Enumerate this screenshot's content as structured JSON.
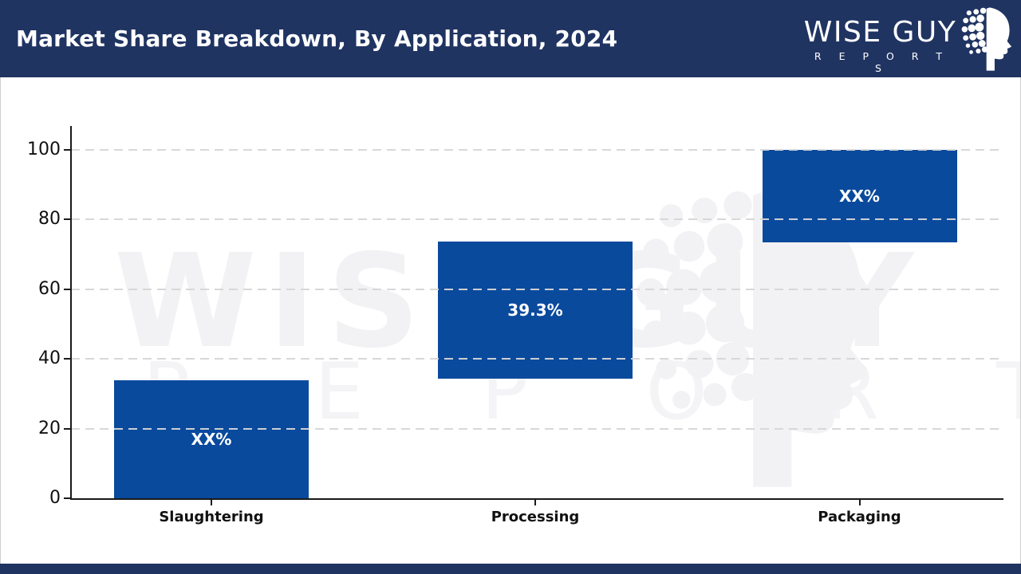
{
  "header": {
    "title": "Market Share Breakdown, By Application, 2024",
    "logo": {
      "name": "WISE GUY",
      "subtitle": "R E P O R T S"
    }
  },
  "watermark": {
    "line1": "WISE GUY",
    "line2": "R E P O R T S"
  },
  "chart_data": {
    "type": "bar",
    "subtype": "floating-segment-waterfall",
    "title": "Market Share Breakdown, By Application, 2024",
    "categories": [
      "Slaughtering",
      "Processing",
      "Packaging"
    ],
    "segments": [
      {
        "category": "Slaughtering",
        "start": 0,
        "end": 33.8,
        "label": "XX%"
      },
      {
        "category": "Processing",
        "start": 34.3,
        "end": 73.6,
        "label": "39.3%"
      },
      {
        "category": "Packaging",
        "start": 73.4,
        "end": 99.8,
        "label": "XX%"
      }
    ],
    "xlabel": "",
    "ylabel": "",
    "yticks": [
      0,
      20,
      40,
      60,
      80,
      100
    ],
    "ylim": [
      0,
      106.5
    ],
    "grid": "horizontal-dashed",
    "legend": "none",
    "bar_color": "#0a4a9d",
    "bar_label_color": "#ffffff"
  },
  "colors": {
    "header_bg": "#203462",
    "footer_bg": "#203462",
    "bar": "#0a4a9d",
    "grid": "#d6d6d6",
    "axis": "#1a1a1a",
    "watermark": "#f2f2f4"
  }
}
